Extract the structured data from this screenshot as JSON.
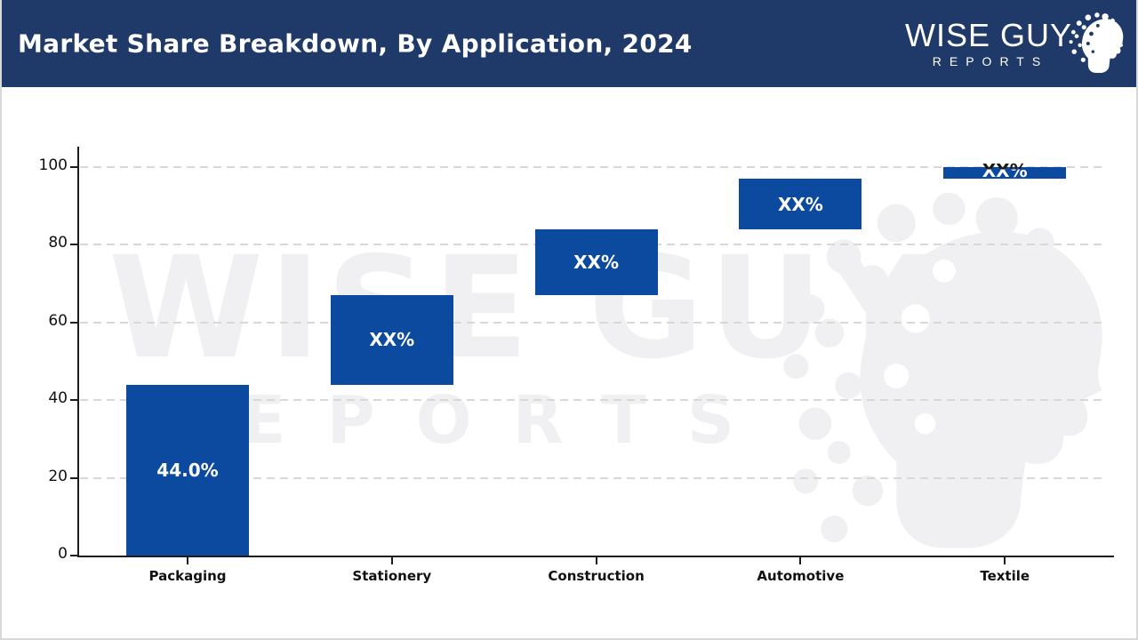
{
  "header": {
    "title": "Market Share Breakdown, By Application, 2024",
    "logo": {
      "line1": "WISE GUY",
      "line2": "REPORTS"
    }
  },
  "watermark": {
    "line1": "WISE GUY",
    "line2": "REPORTS"
  },
  "colors": {
    "header_bg": "#1f3a68",
    "bar_blue": "#0b4a9f",
    "axis": "#1c1c1c",
    "gridline": "#d8d8d8",
    "watermark_gray": "#f0f0f3",
    "bar_label_white": "#ffffff"
  },
  "chart_data": {
    "type": "bar",
    "subtype": "waterfall",
    "title": "Market Share Breakdown, By Application, 2024",
    "categories": [
      "Packaging",
      "Stationery",
      "Construction",
      "Automotive",
      "Textile"
    ],
    "segments": [
      {
        "category": "Packaging",
        "start": 0,
        "end": 44,
        "value": 44.0,
        "label": "44.0%"
      },
      {
        "category": "Stationery",
        "start": 44,
        "end": 67,
        "value": 23,
        "label": "XX%"
      },
      {
        "category": "Construction",
        "start": 67,
        "end": 84,
        "value": 17,
        "label": "XX%"
      },
      {
        "category": "Automotive",
        "start": 84,
        "end": 97,
        "value": 13,
        "label": "XX%"
      },
      {
        "category": "Textile",
        "start": 97,
        "end": 100,
        "value": 3,
        "label": "XX%"
      }
    ],
    "ylim": [
      0,
      105
    ],
    "yticks": [
      0,
      20,
      40,
      60,
      80,
      100
    ],
    "xlabel": "",
    "ylabel": "",
    "grid": true,
    "grid_style": "dashed-horizontal",
    "legend": "none",
    "bar_color": "#0b4a9f",
    "bar_label_color": "#ffffff"
  }
}
